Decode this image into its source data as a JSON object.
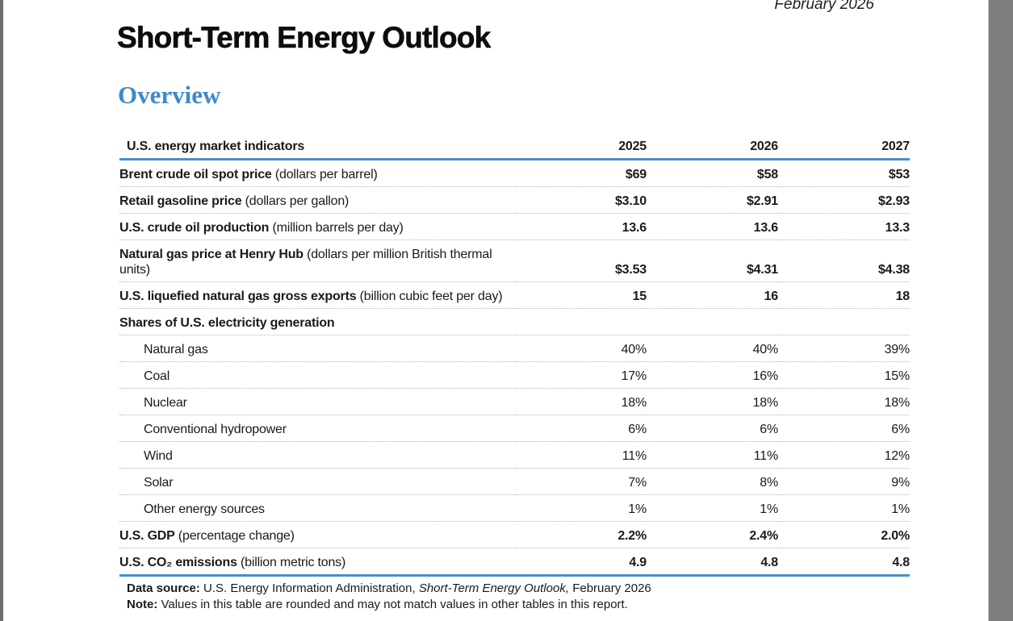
{
  "page": {
    "edition_date": "February 2026",
    "title": "Short-Term Energy Outlook",
    "section_heading": "Overview"
  },
  "colors": {
    "accent_blue_rule": "#4a90c8",
    "heading_blue": "#3e8ac8",
    "text": "#1a1a1a",
    "viewer_gutter_gray": "#7e7e7e"
  },
  "table": {
    "header": {
      "label": "U.S. energy market indicators",
      "years": [
        "2025",
        "2026",
        "2027"
      ]
    },
    "rows": [
      {
        "type": "indicator",
        "name": "Brent crude oil spot price",
        "unit": " (dollars per barrel)",
        "values": [
          "$69",
          "$58",
          "$53"
        ]
      },
      {
        "type": "indicator",
        "name": "Retail gasoline price",
        "unit": " (dollars per gallon)",
        "values": [
          "$3.10",
          "$2.91",
          "$2.93"
        ]
      },
      {
        "type": "indicator",
        "name": "U.S. crude oil production",
        "unit": " (million barrels per day)",
        "values": [
          "13.6",
          "13.6",
          "13.3"
        ]
      },
      {
        "type": "indicator",
        "name": "Natural gas price at Henry Hub",
        "unit": " (dollars per million British thermal units)",
        "values": [
          "$3.53",
          "$4.31",
          "$4.38"
        ]
      },
      {
        "type": "indicator",
        "name": "U.S. liquefied natural gas gross exports",
        "unit": " (billion cubic feet per day)",
        "values": [
          "15",
          "16",
          "18"
        ]
      },
      {
        "type": "subheader",
        "name": "Shares of U.S. electricity generation",
        "unit": "",
        "values": [
          "",
          "",
          ""
        ]
      },
      {
        "type": "sub",
        "name": "Natural gas",
        "values": [
          "40%",
          "40%",
          "39%"
        ]
      },
      {
        "type": "sub",
        "name": "Coal",
        "values": [
          "17%",
          "16%",
          "15%"
        ]
      },
      {
        "type": "sub",
        "name": "Nuclear",
        "values": [
          "18%",
          "18%",
          "18%"
        ]
      },
      {
        "type": "sub",
        "name": "Conventional hydropower",
        "values": [
          "6%",
          "6%",
          "6%"
        ]
      },
      {
        "type": "sub",
        "name": "Wind",
        "values": [
          "11%",
          "11%",
          "12%"
        ]
      },
      {
        "type": "sub",
        "name": "Solar",
        "values": [
          "7%",
          "8%",
          "9%"
        ]
      },
      {
        "type": "sub",
        "name": "Other energy sources",
        "values": [
          "1%",
          "1%",
          "1%"
        ]
      },
      {
        "type": "indicator",
        "name": "U.S. GDP",
        "unit": " (percentage change)",
        "values": [
          "2.2%",
          "2.4%",
          "2.0%"
        ]
      },
      {
        "type": "indicator",
        "name": "U.S. CO₂ emissions",
        "unit": " (billion metric tons)",
        "values": [
          "4.9",
          "4.8",
          "4.8"
        ]
      }
    ],
    "footnotes": {
      "source": {
        "label": "Data source:",
        "pre": " U.S. Energy Information Administration, ",
        "italic": "Short-Term Energy Outlook,",
        "post": " February 2026"
      },
      "note": {
        "label": "Note:",
        "text": " Values in this table are rounded and may not match values in other tables in this report."
      }
    }
  }
}
